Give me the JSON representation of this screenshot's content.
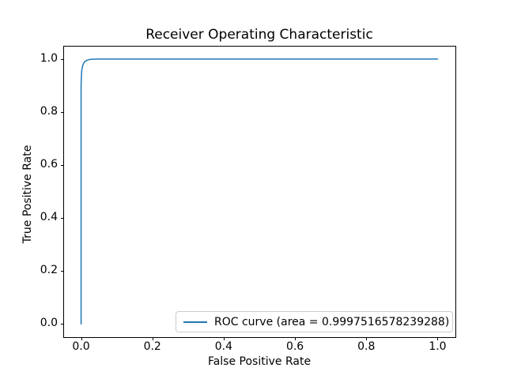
{
  "figure": {
    "background": "#ffffff",
    "spine_color": "#000000",
    "text_color": "#000000"
  },
  "chart_data": {
    "type": "line",
    "title": "Receiver Operating Characteristic",
    "xlabel": "False Positive Rate",
    "ylabel": "True Positive Rate",
    "xlim": [
      -0.05,
      1.05
    ],
    "ylim": [
      -0.05,
      1.05
    ],
    "x_ticks": [
      0.0,
      0.2,
      0.4,
      0.6,
      0.8,
      1.0
    ],
    "y_ticks": [
      0.0,
      0.2,
      0.4,
      0.6,
      0.8,
      1.0
    ],
    "x_tick_labels": [
      "0.0",
      "0.2",
      "0.4",
      "0.6",
      "0.8",
      "1.0"
    ],
    "y_tick_labels": [
      "0.0",
      "0.2",
      "0.4",
      "0.6",
      "0.8",
      "1.0"
    ],
    "grid": false,
    "legend": {
      "position": "lower right",
      "entries": [
        {
          "label": "ROC curve (area = 0.9997516578239288)",
          "color": "#1f77b4"
        }
      ]
    },
    "series": [
      {
        "name": "ROC curve",
        "color": "#1f77b4",
        "line_width": 1.5,
        "area": "0.9997516578239288",
        "points": [
          [
            0.0,
            0.0
          ],
          [
            0.0,
            0.9
          ],
          [
            0.001,
            0.94
          ],
          [
            0.002,
            0.958
          ],
          [
            0.004,
            0.972
          ],
          [
            0.007,
            0.984
          ],
          [
            0.011,
            0.991
          ],
          [
            0.016,
            0.995
          ],
          [
            0.023,
            0.998
          ],
          [
            0.032,
            0.9993
          ],
          [
            0.045,
            1.0
          ],
          [
            1.0,
            1.0
          ]
        ]
      }
    ]
  }
}
